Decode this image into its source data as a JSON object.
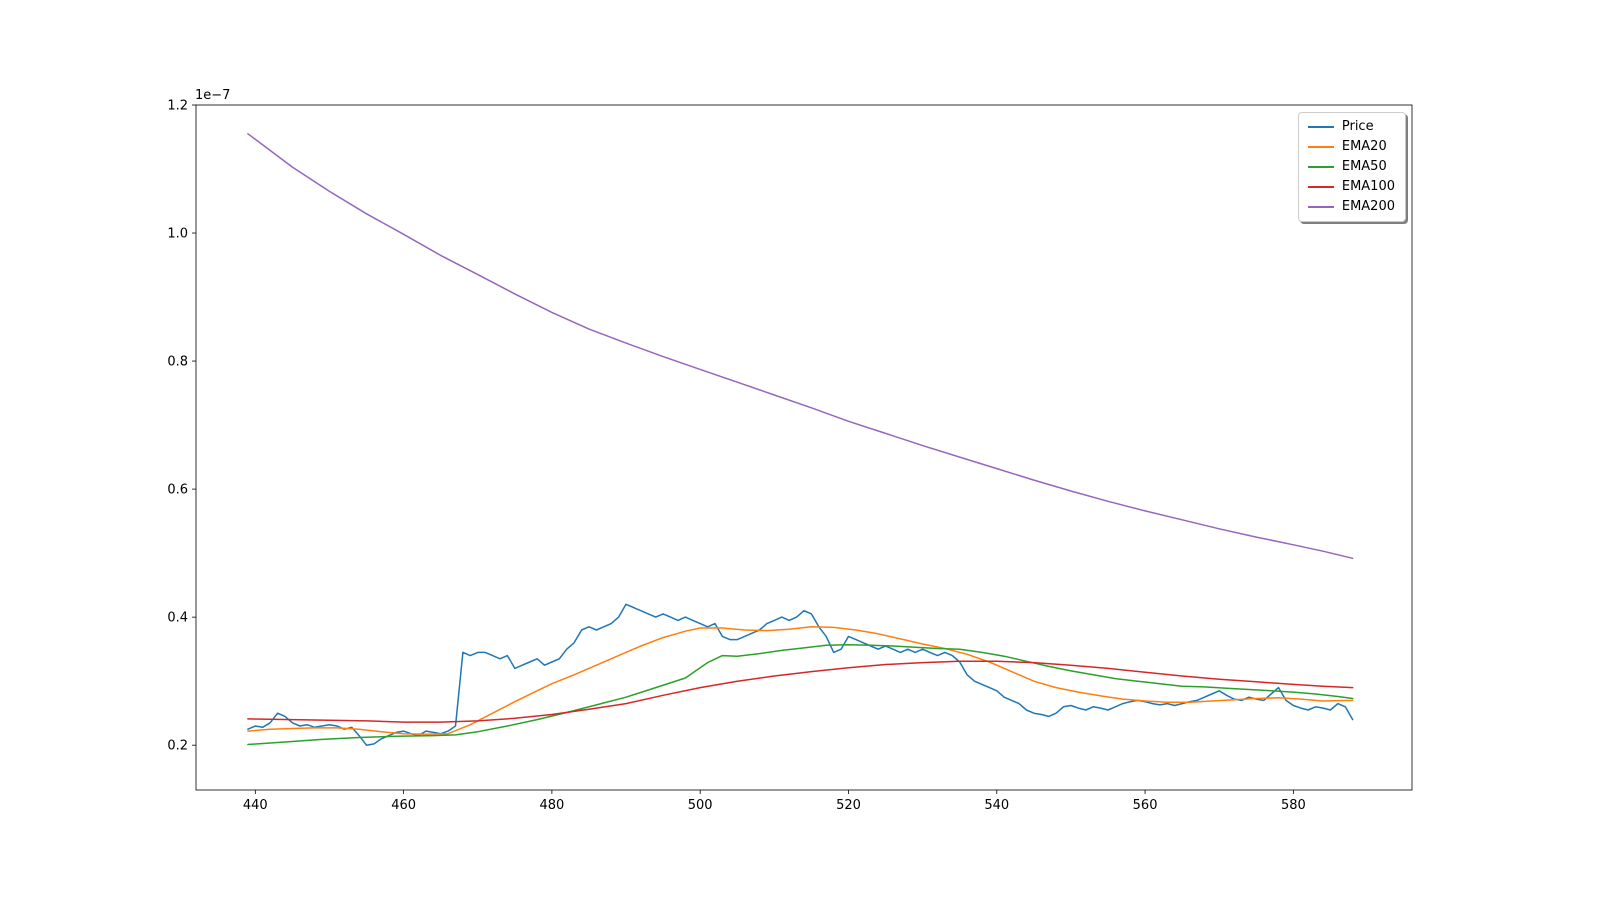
{
  "figure": {
    "background": "#ffffff",
    "y_offset_label": "1e−7"
  },
  "chart_data": {
    "type": "line",
    "title": "",
    "xlabel": "",
    "ylabel": "",
    "grid": false,
    "y_scale_factor": "1e-7",
    "xlim": [
      432,
      596
    ],
    "ylim": [
      0.13,
      1.2
    ],
    "xticks": [
      440,
      460,
      480,
      500,
      520,
      540,
      560,
      580
    ],
    "yticks": [
      0.2,
      0.4,
      0.6,
      0.8,
      1.0,
      1.2
    ],
    "legend": {
      "position": "upper right",
      "entries": [
        "Price",
        "EMA20",
        "EMA50",
        "EMA100",
        "EMA200"
      ]
    },
    "series": [
      {
        "name": "Price",
        "color": "#1f77b4",
        "points": [
          [
            439,
            0.225
          ],
          [
            440,
            0.23
          ],
          [
            441,
            0.228
          ],
          [
            442,
            0.235
          ],
          [
            443,
            0.25
          ],
          [
            444,
            0.245
          ],
          [
            445,
            0.235
          ],
          [
            446,
            0.23
          ],
          [
            447,
            0.232
          ],
          [
            448,
            0.228
          ],
          [
            449,
            0.23
          ],
          [
            450,
            0.232
          ],
          [
            451,
            0.23
          ],
          [
            452,
            0.225
          ],
          [
            453,
            0.228
          ],
          [
            454,
            0.215
          ],
          [
            455,
            0.2
          ],
          [
            456,
            0.202
          ],
          [
            457,
            0.21
          ],
          [
            458,
            0.215
          ],
          [
            459,
            0.22
          ],
          [
            460,
            0.222
          ],
          [
            461,
            0.218
          ],
          [
            462,
            0.215
          ],
          [
            463,
            0.222
          ],
          [
            464,
            0.22
          ],
          [
            465,
            0.218
          ],
          [
            466,
            0.222
          ],
          [
            467,
            0.23
          ],
          [
            468,
            0.345
          ],
          [
            469,
            0.34
          ],
          [
            470,
            0.345
          ],
          [
            471,
            0.345
          ],
          [
            472,
            0.34
          ],
          [
            473,
            0.335
          ],
          [
            474,
            0.34
          ],
          [
            475,
            0.32
          ],
          [
            476,
            0.325
          ],
          [
            477,
            0.33
          ],
          [
            478,
            0.335
          ],
          [
            479,
            0.325
          ],
          [
            480,
            0.33
          ],
          [
            481,
            0.335
          ],
          [
            482,
            0.35
          ],
          [
            483,
            0.36
          ],
          [
            484,
            0.38
          ],
          [
            485,
            0.385
          ],
          [
            486,
            0.38
          ],
          [
            487,
            0.385
          ],
          [
            488,
            0.39
          ],
          [
            489,
            0.4
          ],
          [
            490,
            0.42
          ],
          [
            491,
            0.415
          ],
          [
            492,
            0.41
          ],
          [
            493,
            0.405
          ],
          [
            494,
            0.4
          ],
          [
            495,
            0.405
          ],
          [
            496,
            0.4
          ],
          [
            497,
            0.395
          ],
          [
            498,
            0.4
          ],
          [
            499,
            0.395
          ],
          [
            500,
            0.39
          ],
          [
            501,
            0.385
          ],
          [
            502,
            0.39
          ],
          [
            503,
            0.37
          ],
          [
            504,
            0.365
          ],
          [
            505,
            0.365
          ],
          [
            506,
            0.37
          ],
          [
            507,
            0.375
          ],
          [
            508,
            0.38
          ],
          [
            509,
            0.39
          ],
          [
            510,
            0.395
          ],
          [
            511,
            0.4
          ],
          [
            512,
            0.395
          ],
          [
            513,
            0.4
          ],
          [
            514,
            0.41
          ],
          [
            515,
            0.405
          ],
          [
            516,
            0.385
          ],
          [
            517,
            0.37
          ],
          [
            518,
            0.345
          ],
          [
            519,
            0.35
          ],
          [
            520,
            0.37
          ],
          [
            521,
            0.365
          ],
          [
            522,
            0.36
          ],
          [
            523,
            0.355
          ],
          [
            524,
            0.35
          ],
          [
            525,
            0.355
          ],
          [
            526,
            0.35
          ],
          [
            527,
            0.345
          ],
          [
            528,
            0.35
          ],
          [
            529,
            0.345
          ],
          [
            530,
            0.35
          ],
          [
            531,
            0.345
          ],
          [
            532,
            0.34
          ],
          [
            533,
            0.345
          ],
          [
            534,
            0.34
          ],
          [
            535,
            0.33
          ],
          [
            536,
            0.31
          ],
          [
            537,
            0.3
          ],
          [
            538,
            0.295
          ],
          [
            539,
            0.29
          ],
          [
            540,
            0.285
          ],
          [
            541,
            0.275
          ],
          [
            542,
            0.27
          ],
          [
            543,
            0.265
          ],
          [
            544,
            0.255
          ],
          [
            545,
            0.25
          ],
          [
            546,
            0.248
          ],
          [
            547,
            0.245
          ],
          [
            548,
            0.25
          ],
          [
            549,
            0.26
          ],
          [
            550,
            0.262
          ],
          [
            551,
            0.258
          ],
          [
            552,
            0.255
          ],
          [
            553,
            0.26
          ],
          [
            554,
            0.258
          ],
          [
            555,
            0.255
          ],
          [
            556,
            0.26
          ],
          [
            557,
            0.265
          ],
          [
            558,
            0.268
          ],
          [
            559,
            0.27
          ],
          [
            560,
            0.268
          ],
          [
            561,
            0.265
          ],
          [
            562,
            0.263
          ],
          [
            563,
            0.265
          ],
          [
            564,
            0.262
          ],
          [
            565,
            0.265
          ],
          [
            566,
            0.268
          ],
          [
            567,
            0.27
          ],
          [
            568,
            0.275
          ],
          [
            569,
            0.28
          ],
          [
            570,
            0.285
          ],
          [
            571,
            0.278
          ],
          [
            572,
            0.272
          ],
          [
            573,
            0.27
          ],
          [
            574,
            0.275
          ],
          [
            575,
            0.272
          ],
          [
            576,
            0.27
          ],
          [
            577,
            0.28
          ],
          [
            578,
            0.29
          ],
          [
            579,
            0.27
          ],
          [
            580,
            0.262
          ],
          [
            581,
            0.258
          ],
          [
            582,
            0.255
          ],
          [
            583,
            0.26
          ],
          [
            584,
            0.258
          ],
          [
            585,
            0.255
          ],
          [
            586,
            0.265
          ],
          [
            587,
            0.26
          ],
          [
            588,
            0.24
          ]
        ]
      },
      {
        "name": "EMA20",
        "color": "#ff7f0e",
        "points": [
          [
            439,
            0.222
          ],
          [
            442,
            0.225
          ],
          [
            445,
            0.226
          ],
          [
            448,
            0.227
          ],
          [
            451,
            0.227
          ],
          [
            454,
            0.225
          ],
          [
            457,
            0.221
          ],
          [
            460,
            0.218
          ],
          [
            463,
            0.217
          ],
          [
            466,
            0.218
          ],
          [
            469,
            0.232
          ],
          [
            472,
            0.25
          ],
          [
            475,
            0.268
          ],
          [
            478,
            0.285
          ],
          [
            480,
            0.296
          ],
          [
            483,
            0.31
          ],
          [
            486,
            0.325
          ],
          [
            489,
            0.34
          ],
          [
            492,
            0.355
          ],
          [
            495,
            0.368
          ],
          [
            498,
            0.378
          ],
          [
            500,
            0.383
          ],
          [
            503,
            0.383
          ],
          [
            506,
            0.38
          ],
          [
            509,
            0.379
          ],
          [
            512,
            0.381
          ],
          [
            515,
            0.385
          ],
          [
            518,
            0.384
          ],
          [
            521,
            0.38
          ],
          [
            524,
            0.374
          ],
          [
            527,
            0.366
          ],
          [
            530,
            0.358
          ],
          [
            533,
            0.351
          ],
          [
            536,
            0.342
          ],
          [
            539,
            0.33
          ],
          [
            542,
            0.315
          ],
          [
            545,
            0.3
          ],
          [
            548,
            0.29
          ],
          [
            551,
            0.283
          ],
          [
            554,
            0.277
          ],
          [
            557,
            0.272
          ],
          [
            560,
            0.269
          ],
          [
            563,
            0.267
          ],
          [
            566,
            0.267
          ],
          [
            569,
            0.269
          ],
          [
            572,
            0.271
          ],
          [
            575,
            0.273
          ],
          [
            578,
            0.274
          ],
          [
            581,
            0.272
          ],
          [
            584,
            0.269
          ],
          [
            588,
            0.27
          ]
        ]
      },
      {
        "name": "EMA50",
        "color": "#2ca02c",
        "points": [
          [
            439,
            0.201
          ],
          [
            444,
            0.205
          ],
          [
            449,
            0.209
          ],
          [
            454,
            0.212
          ],
          [
            459,
            0.214
          ],
          [
            464,
            0.215
          ],
          [
            467,
            0.216
          ],
          [
            470,
            0.221
          ],
          [
            474,
            0.23
          ],
          [
            478,
            0.24
          ],
          [
            482,
            0.251
          ],
          [
            486,
            0.263
          ],
          [
            490,
            0.275
          ],
          [
            494,
            0.29
          ],
          [
            498,
            0.305
          ],
          [
            501,
            0.329
          ],
          [
            503,
            0.34
          ],
          [
            505,
            0.339
          ],
          [
            508,
            0.343
          ],
          [
            511,
            0.348
          ],
          [
            514,
            0.352
          ],
          [
            517,
            0.356
          ],
          [
            520,
            0.357
          ],
          [
            523,
            0.356
          ],
          [
            526,
            0.355
          ],
          [
            529,
            0.353
          ],
          [
            532,
            0.351
          ],
          [
            535,
            0.35
          ],
          [
            538,
            0.345
          ],
          [
            541,
            0.339
          ],
          [
            544,
            0.331
          ],
          [
            547,
            0.323
          ],
          [
            550,
            0.316
          ],
          [
            553,
            0.31
          ],
          [
            556,
            0.304
          ],
          [
            559,
            0.3
          ],
          [
            562,
            0.296
          ],
          [
            565,
            0.292
          ],
          [
            568,
            0.291
          ],
          [
            571,
            0.289
          ],
          [
            574,
            0.287
          ],
          [
            577,
            0.285
          ],
          [
            580,
            0.283
          ],
          [
            583,
            0.28
          ],
          [
            586,
            0.276
          ],
          [
            588,
            0.273
          ]
        ]
      },
      {
        "name": "EMA100",
        "color": "#d62728",
        "points": [
          [
            439,
            0.241
          ],
          [
            445,
            0.24
          ],
          [
            450,
            0.239
          ],
          [
            455,
            0.238
          ],
          [
            460,
            0.236
          ],
          [
            465,
            0.236
          ],
          [
            470,
            0.238
          ],
          [
            475,
            0.242
          ],
          [
            480,
            0.248
          ],
          [
            485,
            0.256
          ],
          [
            490,
            0.265
          ],
          [
            495,
            0.278
          ],
          [
            500,
            0.29
          ],
          [
            505,
            0.3
          ],
          [
            510,
            0.308
          ],
          [
            515,
            0.315
          ],
          [
            520,
            0.321
          ],
          [
            525,
            0.326
          ],
          [
            530,
            0.329
          ],
          [
            535,
            0.331
          ],
          [
            540,
            0.331
          ],
          [
            545,
            0.329
          ],
          [
            550,
            0.325
          ],
          [
            555,
            0.32
          ],
          [
            560,
            0.314
          ],
          [
            565,
            0.308
          ],
          [
            570,
            0.303
          ],
          [
            575,
            0.299
          ],
          [
            580,
            0.295
          ],
          [
            584,
            0.292
          ],
          [
            588,
            0.29
          ]
        ]
      },
      {
        "name": "EMA200",
        "color": "#9467bd",
        "points": [
          [
            439,
            1.155
          ],
          [
            445,
            1.103
          ],
          [
            450,
            1.065
          ],
          [
            455,
            1.03
          ],
          [
            460,
            0.998
          ],
          [
            465,
            0.965
          ],
          [
            470,
            0.935
          ],
          [
            475,
            0.905
          ],
          [
            480,
            0.876
          ],
          [
            485,
            0.85
          ],
          [
            490,
            0.828
          ],
          [
            495,
            0.807
          ],
          [
            500,
            0.787
          ],
          [
            505,
            0.767
          ],
          [
            510,
            0.747
          ],
          [
            515,
            0.727
          ],
          [
            520,
            0.706
          ],
          [
            525,
            0.687
          ],
          [
            530,
            0.668
          ],
          [
            535,
            0.65
          ],
          [
            540,
            0.632
          ],
          [
            545,
            0.614
          ],
          [
            550,
            0.597
          ],
          [
            555,
            0.581
          ],
          [
            560,
            0.566
          ],
          [
            565,
            0.552
          ],
          [
            570,
            0.538
          ],
          [
            575,
            0.525
          ],
          [
            580,
            0.513
          ],
          [
            584,
            0.503
          ],
          [
            588,
            0.492
          ]
        ]
      }
    ]
  }
}
